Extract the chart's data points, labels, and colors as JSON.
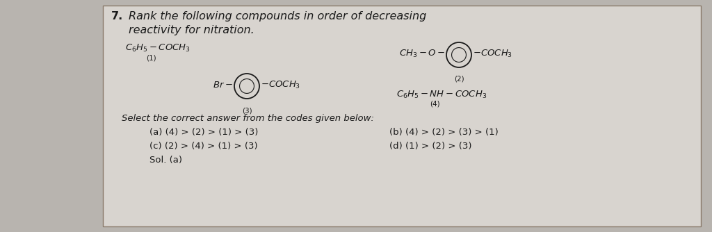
{
  "title_number": "7.",
  "bg_color": "#c8c8c8",
  "panel_color": "#d8d4cf",
  "panel_border": "#8a7a6a",
  "text_color": "#1a1a1a",
  "outer_bg": "#b8b4af",
  "font_size_title": 11.5,
  "font_size_text": 9.5,
  "font_size_small": 8.0,
  "option_a": "(a) (4) > (2) > (1) > (3)",
  "option_b": "(b) (4) > (2) > (3) > (1)",
  "option_c": "(c) (2) > (4) > (1) > (3)",
  "option_d": "(d) (1) > (2) > (3)",
  "sol_text": "Sol. (a)"
}
